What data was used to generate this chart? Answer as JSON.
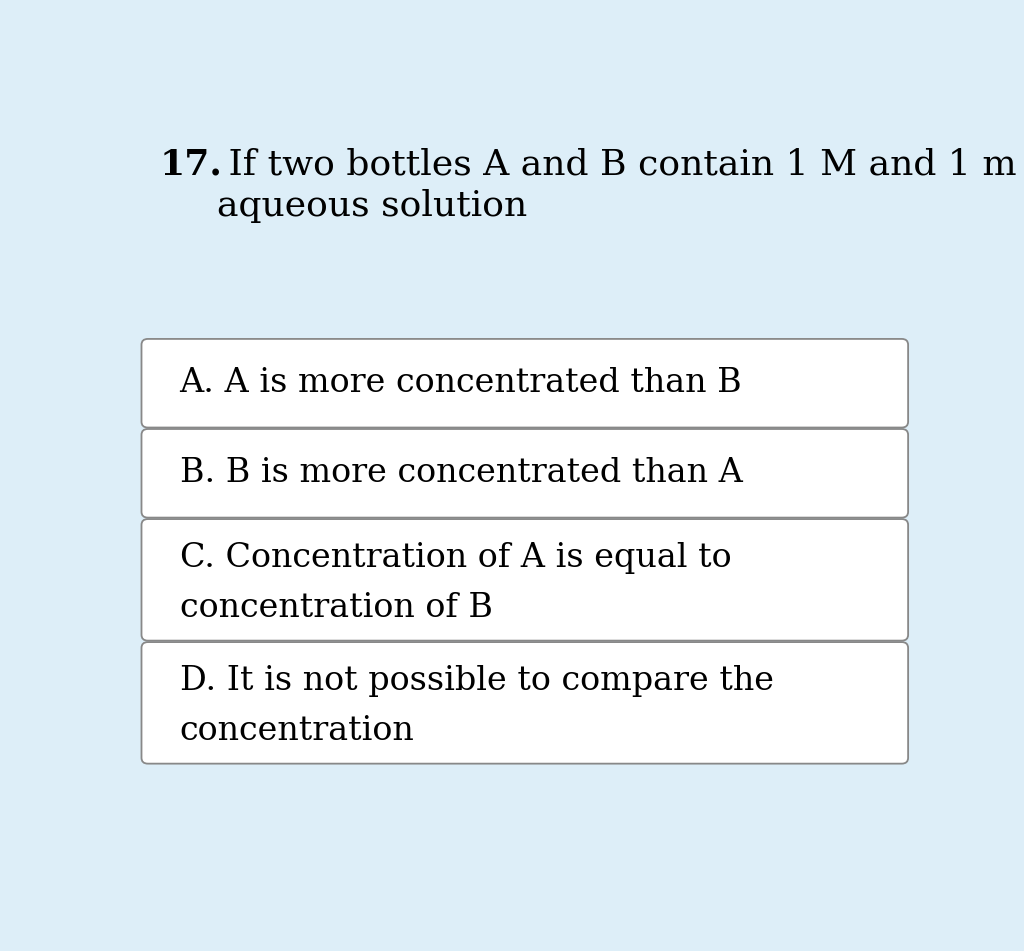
{
  "title_bold": "17.",
  "title_rest": " If two bottles A and B contain 1 M and 1 m\naqueous solution",
  "options_line1": [
    "A. A is more concentrated than B",
    "B. B is more concentrated than A",
    "C. Concentration of A is equal to",
    "D. It is not possible to compare the"
  ],
  "options_line2": [
    null,
    null,
    "concentration of B",
    "concentration"
  ],
  "bg_color": "#ffffff",
  "outer_bg_color": "#ddeef8",
  "box_bg_color": "#ffffff",
  "box_border_color": "#888888",
  "text_color": "#000000",
  "title_fontsize": 26,
  "option_fontsize": 24,
  "fig_width": 10.24,
  "fig_height": 9.51,
  "dpi": 100
}
